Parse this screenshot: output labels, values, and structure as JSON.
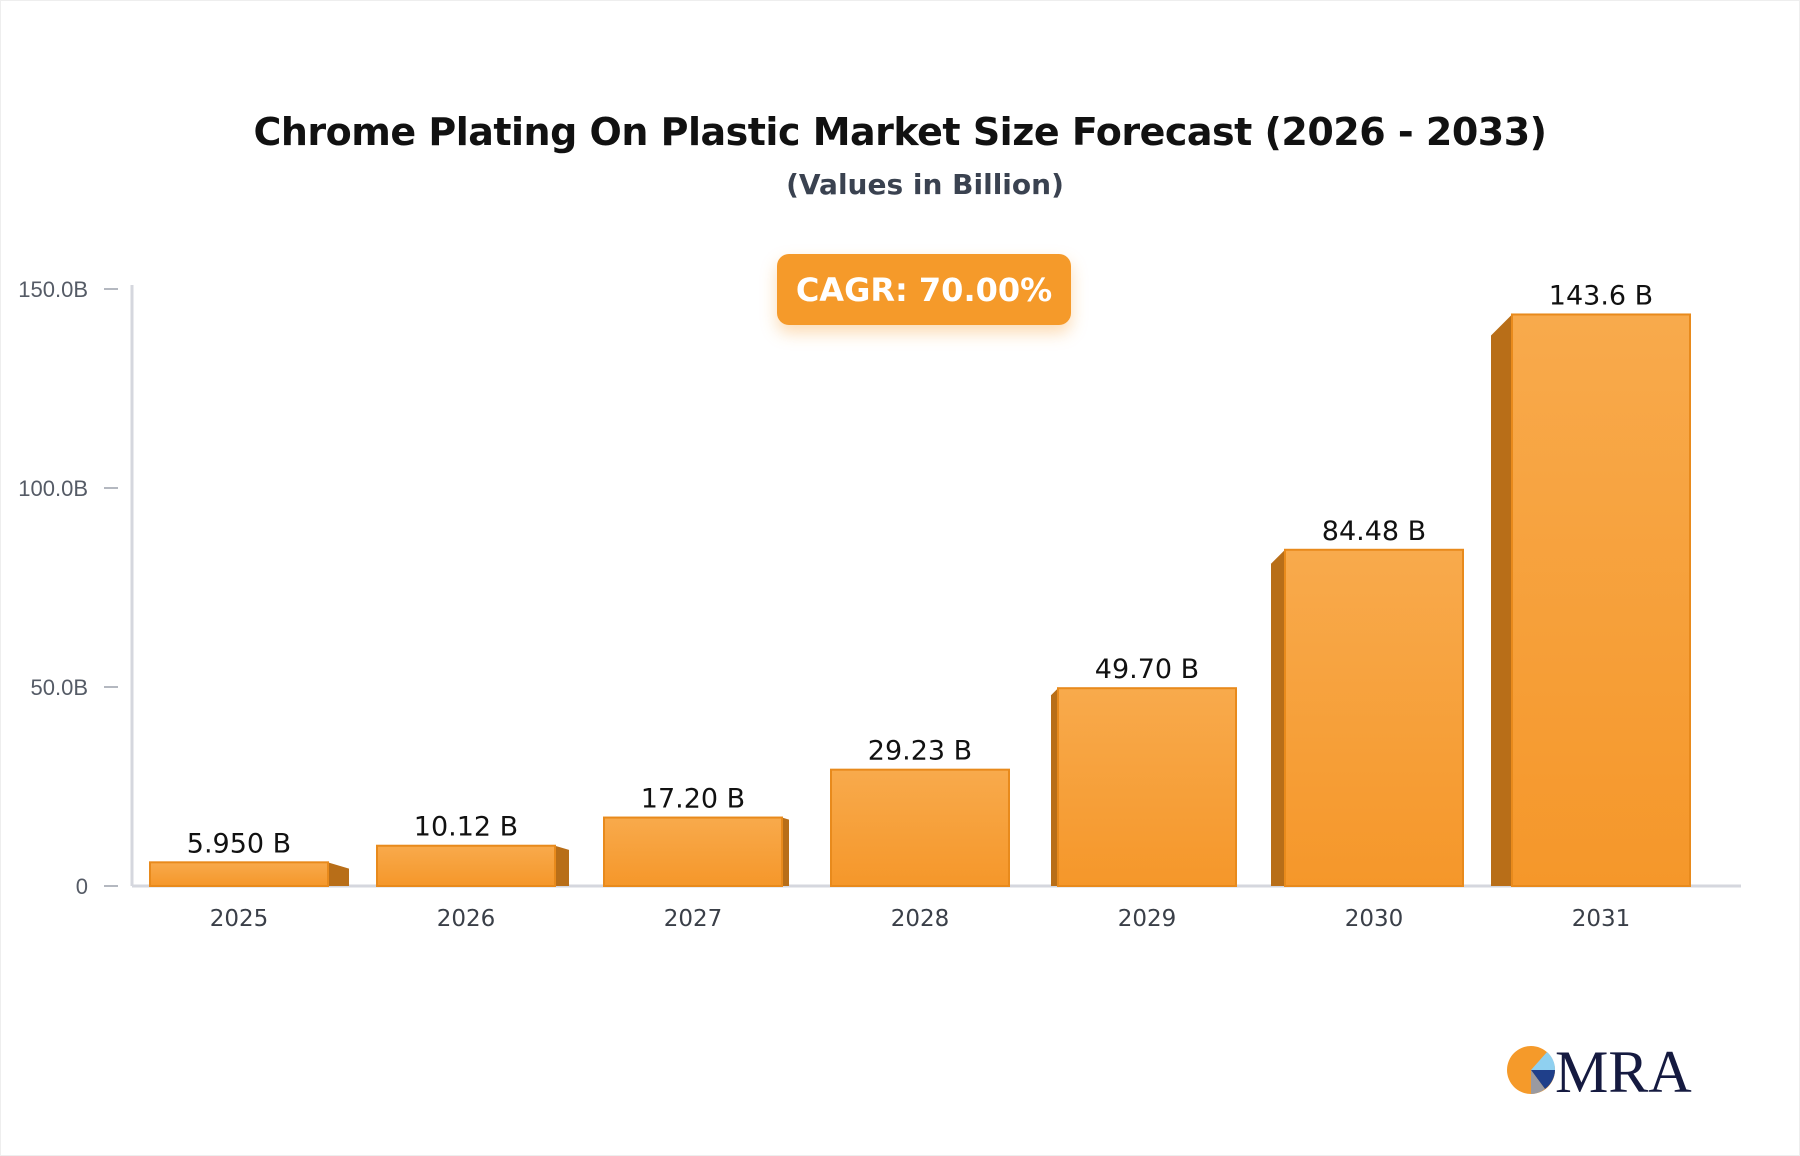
{
  "chart_data": {
    "type": "bar",
    "title": "Chrome Plating On Plastic Market Size Forecast (2026 - 2033)",
    "subtitle": "(Values in Billion)",
    "annotation": "CAGR: 70.00%",
    "categories": [
      "2025",
      "2026",
      "2027",
      "2028",
      "2029",
      "2030",
      "2031"
    ],
    "values": [
      5.95,
      10.12,
      17.2,
      29.23,
      49.7,
      84.48,
      143.6
    ],
    "data_labels": [
      "5.950 B",
      "10.12 B",
      "17.20 B",
      "29.23 B",
      "49.70 B",
      "84.48 B",
      "143.6 B"
    ],
    "y_ticks": [
      0,
      50,
      100,
      150
    ],
    "y_tick_labels": [
      "0",
      "50.0B",
      "100.0B",
      "150.0B"
    ],
    "ylim": [
      0,
      150
    ],
    "grid": false,
    "bar_color": "#f59a2a",
    "bar_side_color": "#b86e18"
  },
  "logo": {
    "text": "MRA"
  }
}
